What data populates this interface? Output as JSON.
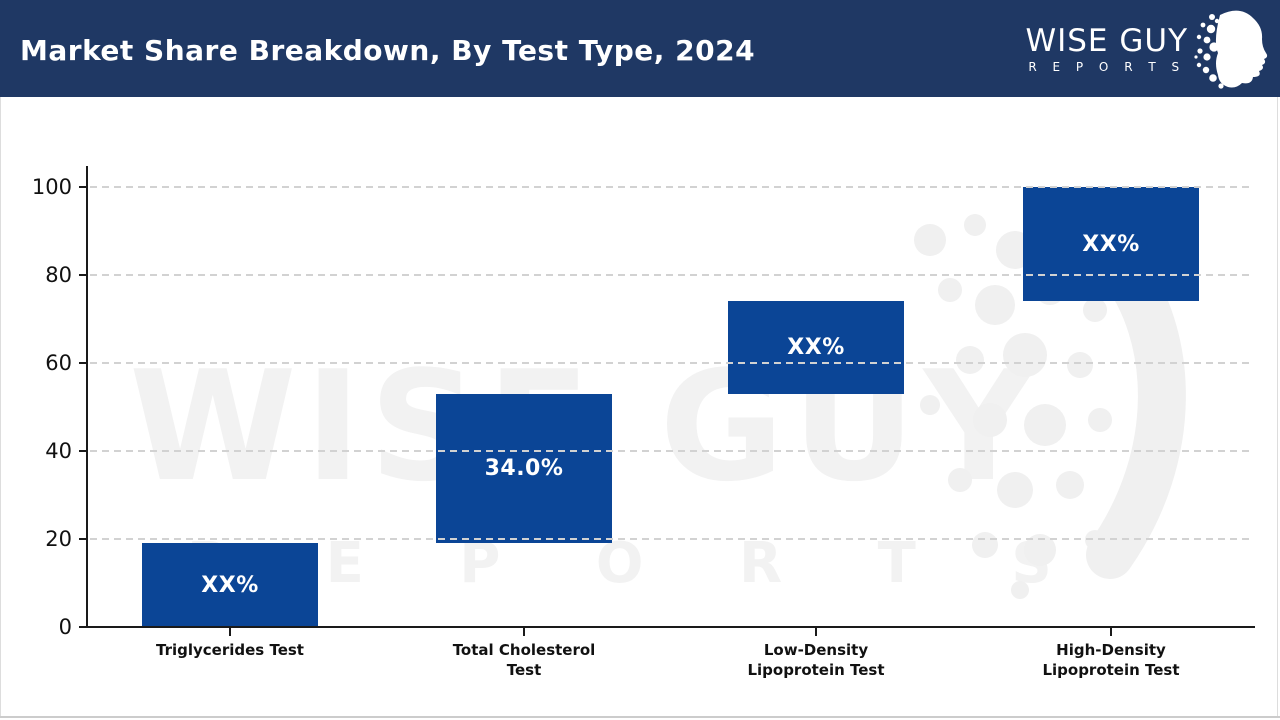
{
  "header": {
    "title": "Market Share Breakdown, By Test Type, 2024",
    "background": "#1f3864",
    "logo": {
      "line1": "WISE GUY",
      "line2": "R E P O R T S"
    }
  },
  "watermark": {
    "line1": "WISE GUY",
    "line2": "R E P O R T S"
  },
  "chart_data": {
    "type": "bar",
    "subtype": "waterfall",
    "title": "Market Share Breakdown, By Test Type, 2024",
    "categories": [
      "Triglycerides Test",
      "Total Cholesterol\nTest",
      "Low-Density\nLipoprotein Test",
      "High-Density\nLipoprotein Test"
    ],
    "segments": [
      {
        "start": 0,
        "end": 19
      },
      {
        "start": 19,
        "end": 53
      },
      {
        "start": 53,
        "end": 74
      },
      {
        "start": 74,
        "end": 100
      }
    ],
    "values": [
      19,
      34,
      21,
      26
    ],
    "bar_labels": [
      "XX%",
      "34.0%",
      "XX%",
      "XX%"
    ],
    "yticks": [
      0,
      20,
      40,
      60,
      80,
      100
    ],
    "ylim": [
      0,
      105
    ],
    "xlabel": "",
    "ylabel": "",
    "grid": "horizontal-dashed-over-bars",
    "legend": null,
    "colors": {
      "bar": "#0b4596",
      "bar_label": "#ffffff",
      "axis": "#1a1a1a",
      "tick_label": "#111111",
      "gridline": "#d2d2d2",
      "watermark": "#f2f2f2"
    }
  }
}
